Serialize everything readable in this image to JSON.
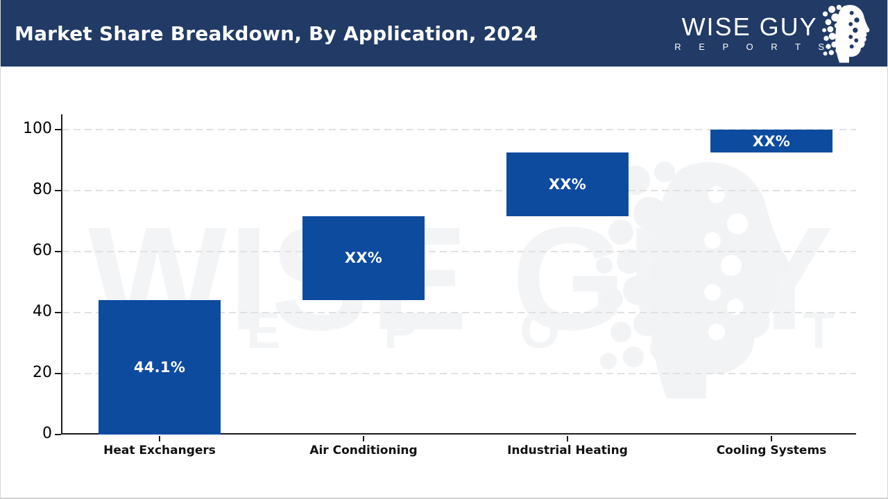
{
  "header": {
    "title": "Market Share Breakdown, By Application, 2024",
    "logo": {
      "line1": "WISE GUY",
      "line2": "R E P O R T S"
    }
  },
  "watermark": {
    "line1": "WISE GUY",
    "line2": "R E P O R T S"
  },
  "chart_data": {
    "type": "bar",
    "subtype": "waterfall",
    "title": "Market Share Breakdown, By Application, 2024",
    "categories": [
      "Heat Exchangers",
      "Air Conditioning",
      "Industrial Heating",
      "Cooling Systems"
    ],
    "segments": [
      {
        "category": "Heat Exchangers",
        "start": 0,
        "end": 44.1,
        "label": "44.1%"
      },
      {
        "category": "Air Conditioning",
        "start": 44.1,
        "end": 71.6,
        "label": "XX%"
      },
      {
        "category": "Industrial Heating",
        "start": 71.6,
        "end": 92.5,
        "label": "XX%"
      },
      {
        "category": "Cooling Systems",
        "start": 92.5,
        "end": 100,
        "label": "XX%"
      }
    ],
    "ylim": [
      0,
      100
    ],
    "yticks": [
      0,
      20,
      40,
      60,
      80,
      100
    ],
    "xlabel": "",
    "ylabel": "",
    "grid": "horizontal-dashed",
    "legend": "none",
    "bar_color": "#0d4b9f",
    "label_color": "#ffffff"
  }
}
